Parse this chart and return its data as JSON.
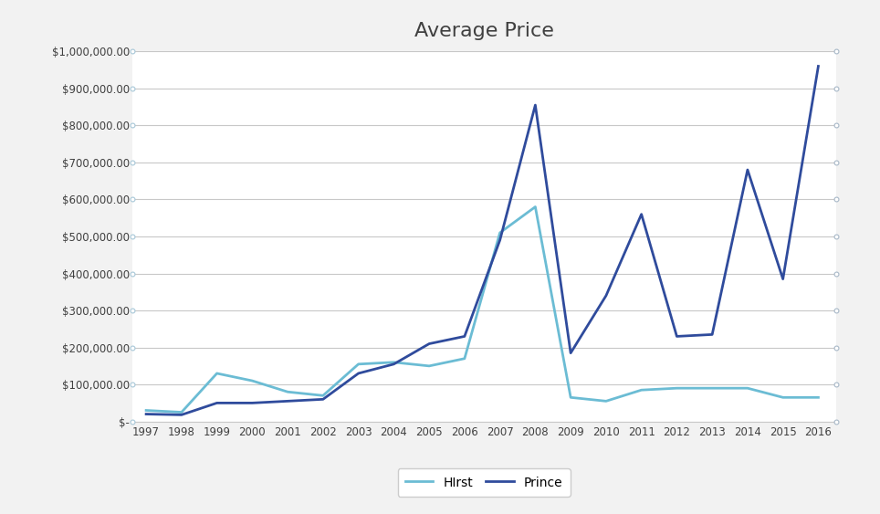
{
  "title": "Average Price",
  "years": [
    1997,
    1998,
    1999,
    2000,
    2001,
    2002,
    2003,
    2004,
    2005,
    2006,
    2007,
    2008,
    2009,
    2010,
    2011,
    2012,
    2013,
    2014,
    2015,
    2016
  ],
  "hirst": [
    30000,
    25000,
    130000,
    110000,
    80000,
    70000,
    155000,
    160000,
    150000,
    170000,
    510000,
    580000,
    65000,
    55000,
    85000,
    90000,
    90000,
    90000,
    65000,
    65000
  ],
  "prince": [
    20000,
    18000,
    50000,
    50000,
    55000,
    60000,
    130000,
    155000,
    210000,
    230000,
    490000,
    855000,
    185000,
    340000,
    560000,
    230000,
    235000,
    680000,
    385000,
    960000
  ],
  "hirst_color": "#6BBCD4",
  "prince_color": "#2F4B9C",
  "ylim": [
    0,
    1000000
  ],
  "yticks": [
    0,
    100000,
    200000,
    300000,
    400000,
    500000,
    600000,
    700000,
    800000,
    900000,
    1000000
  ],
  "background_color": "#FFFFFF",
  "outer_bg": "#F2F2F2",
  "grid_color": "#C8C8C8",
  "title_fontsize": 16,
  "legend_labels": [
    "HIrst",
    "Prince"
  ],
  "tick_circle_color": "#A8C8D8",
  "tick_circle_color_right": "#A8B8C8",
  "line_width": 2.0
}
